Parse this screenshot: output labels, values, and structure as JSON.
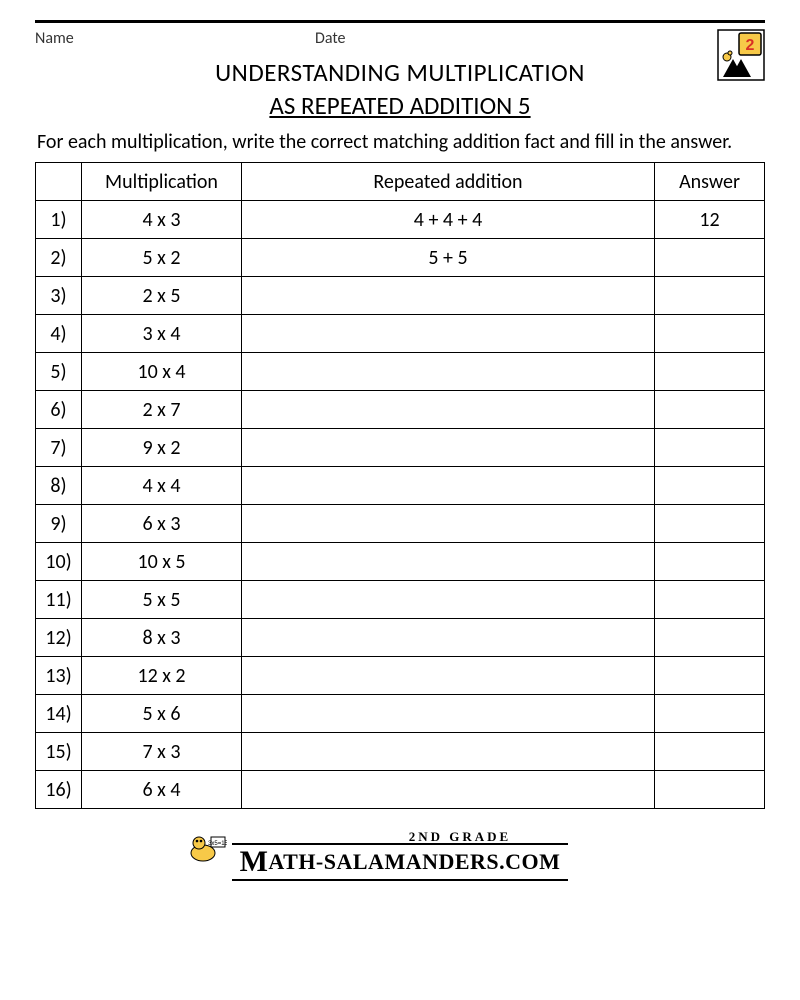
{
  "header": {
    "name_label": "Name",
    "date_label": "Date",
    "logo_badge_number": "2"
  },
  "title_line1": "UNDERSTANDING MULTIPLICATION",
  "title_line2": "AS REPEATED ADDITION 5",
  "instructions": "For each multiplication, write the correct matching addition fact and fill in the answer.",
  "columns": {
    "multiplication": "Multiplication",
    "repeated_addition": "Repeated addition",
    "answer": "Answer"
  },
  "rows": [
    {
      "n": "1)",
      "mult": "4 x 3",
      "rep": "4 + 4 + 4",
      "ans": "12"
    },
    {
      "n": "2)",
      "mult": "5 x 2",
      "rep": "5 + 5",
      "ans": ""
    },
    {
      "n": "3)",
      "mult": "2 x 5",
      "rep": "",
      "ans": ""
    },
    {
      "n": "4)",
      "mult": "3 x 4",
      "rep": "",
      "ans": ""
    },
    {
      "n": "5)",
      "mult": "10 x 4",
      "rep": "",
      "ans": ""
    },
    {
      "n": "6)",
      "mult": "2 x 7",
      "rep": "",
      "ans": ""
    },
    {
      "n": "7)",
      "mult": "9 x 2",
      "rep": "",
      "ans": ""
    },
    {
      "n": "8)",
      "mult": "4 x 4",
      "rep": "",
      "ans": ""
    },
    {
      "n": "9)",
      "mult": "6 x 3",
      "rep": "",
      "ans": ""
    },
    {
      "n": "10)",
      "mult": "10 x 5",
      "rep": "",
      "ans": ""
    },
    {
      "n": "11)",
      "mult": "5 x 5",
      "rep": "",
      "ans": ""
    },
    {
      "n": "12)",
      "mult": "8 x 3",
      "rep": "",
      "ans": ""
    },
    {
      "n": "13)",
      "mult": "12 x 2",
      "rep": "",
      "ans": ""
    },
    {
      "n": "14)",
      "mult": "5 x 6",
      "rep": "",
      "ans": ""
    },
    {
      "n": "15)",
      "mult": "7 x 3",
      "rep": "",
      "ans": ""
    },
    {
      "n": "16)",
      "mult": "6 x 4",
      "rep": "",
      "ans": ""
    }
  ],
  "footer": {
    "grade": "2ND GRADE",
    "site_prefix": "M",
    "site_text": "ATH-SALAMANDERS.COM"
  },
  "colors": {
    "text": "#000000",
    "border": "#000000",
    "background": "#ffffff",
    "logo_yellow": "#f7c948",
    "logo_red": "#d93025"
  }
}
